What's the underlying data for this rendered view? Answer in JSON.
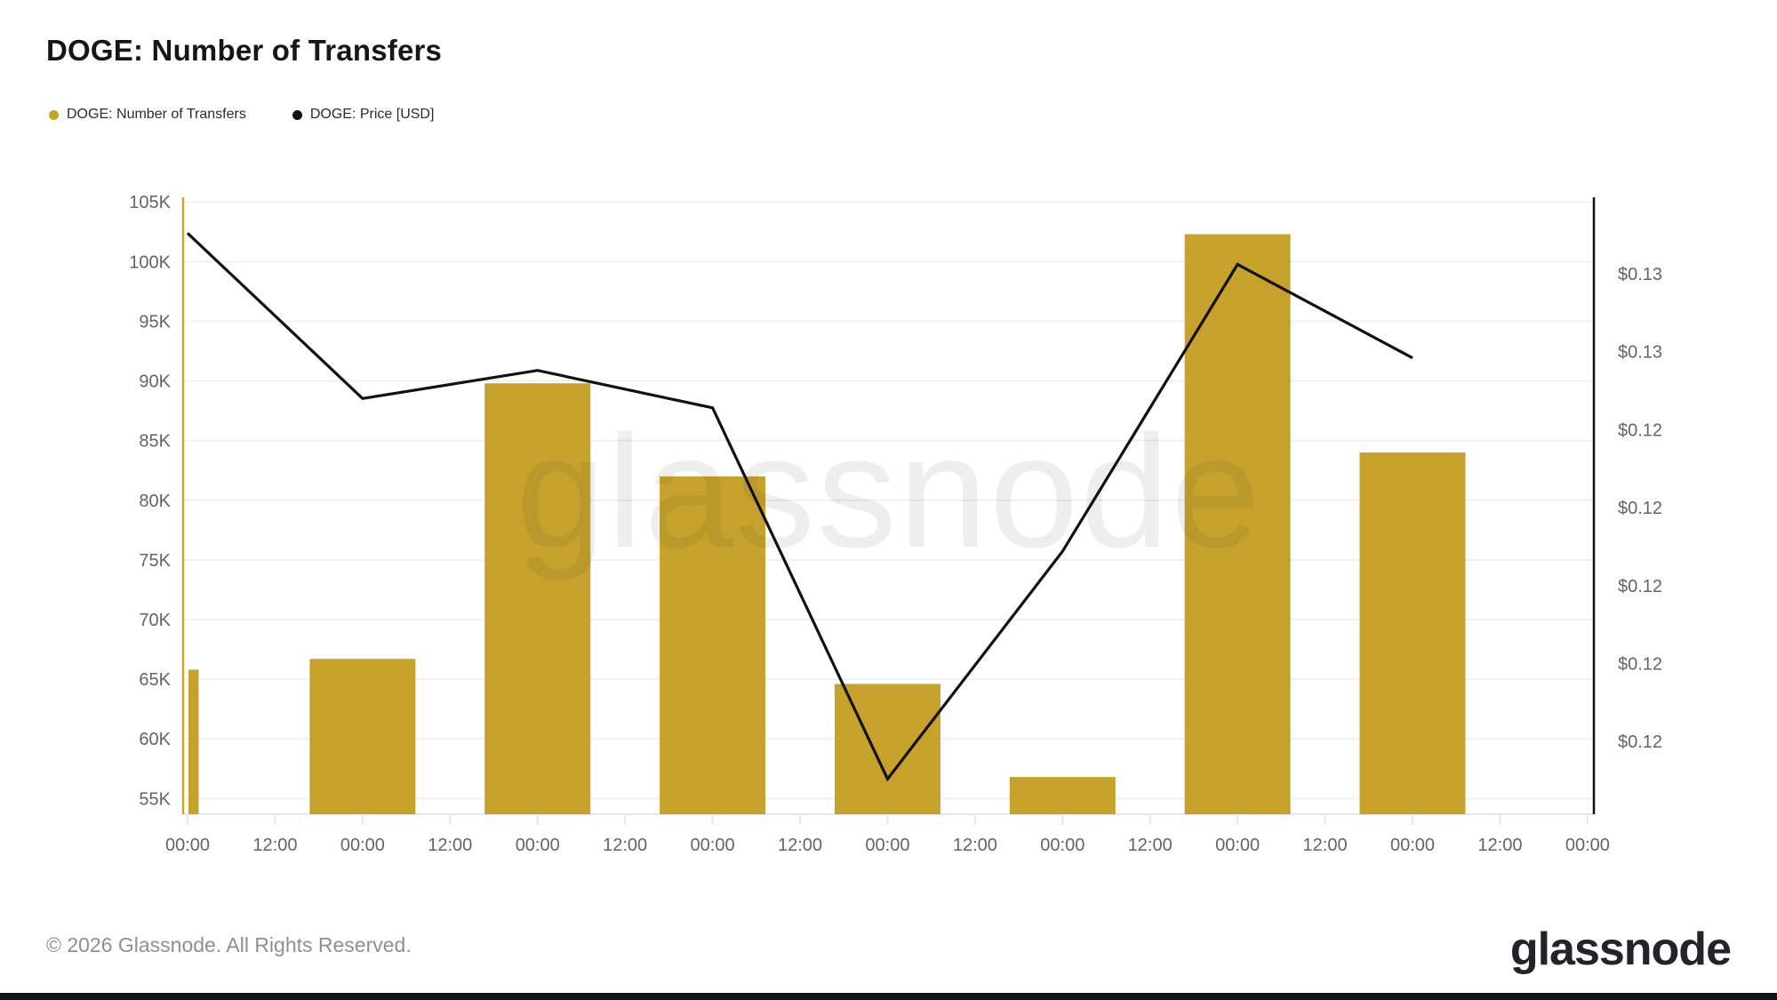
{
  "header": {
    "title": "DOGE: Number of Transfers"
  },
  "legend": [
    {
      "label": "DOGE: Number of Transfers",
      "color": "#C6A22D"
    },
    {
      "label": "DOGE: Price [USD]",
      "color": "#111111"
    }
  ],
  "watermark_text": "glassnode",
  "footer": {
    "copyright": "© 2026 Glassnode. All Rights Reserved.",
    "logo_text": "glassnode"
  },
  "colors": {
    "bar": "#C6A22D",
    "price_line": "#111111",
    "left_axis_line": "#C9A52B",
    "right_axis_line": "#111111",
    "grid_line": "#f0f0f4",
    "tick_mark": "#e6e6eb",
    "axis_label": "#646468",
    "watermark": "rgba(40,40,40,0.08)",
    "bottom_bar": "#13131d"
  },
  "chart_data": {
    "type": "bar",
    "title": "DOGE: Number of Transfers",
    "grid": "horizontal",
    "legend_position": "top-left",
    "x_tick_labels": [
      "00:00",
      "12:00",
      "00:00",
      "12:00",
      "00:00",
      "12:00",
      "00:00",
      "12:00",
      "00:00",
      "12:00",
      "00:00",
      "12:00",
      "00:00",
      "12:00",
      "00:00",
      "12:00",
      "00:00"
    ],
    "left_axis": {
      "name": "DOGE: Number of Transfers",
      "tick_labels": [
        "105K",
        "100K",
        "95K",
        "90K",
        "85K",
        "80K",
        "75K",
        "70K",
        "65K",
        "60K",
        "55K"
      ],
      "tick_values": [
        105000,
        100000,
        95000,
        90000,
        85000,
        80000,
        75000,
        70000,
        65000,
        60000,
        55000
      ],
      "ylim": [
        53680,
        105390
      ]
    },
    "right_axis": {
      "name": "DOGE: Price [USD]",
      "tick_labels": [
        "$0.13",
        "$0.13",
        "$0.12",
        "$0.12",
        "$0.12",
        "$0.12",
        "$0.12"
      ],
      "tick_values": [
        0.13,
        0.1275,
        0.125,
        0.1225,
        0.12,
        0.1175,
        0.115
      ],
      "ylim": [
        0.11267,
        0.13245
      ]
    },
    "series": [
      {
        "name": "DOGE: Number of Transfers",
        "type": "bar",
        "axis": "left",
        "color": "#C6A22D",
        "x_tick_index": [
          0,
          2,
          4,
          6,
          8,
          10,
          12,
          14
        ],
        "values": [
          65800,
          66700,
          89800,
          82000,
          64600,
          56800,
          102300,
          84000
        ],
        "first_bar_clipped_left": true
      },
      {
        "name": "DOGE: Price [USD]",
        "type": "line",
        "axis": "right",
        "color": "#111111",
        "x_tick_index": [
          0,
          2,
          4,
          6,
          8,
          10,
          12,
          14
        ],
        "values": [
          0.1313,
          0.126,
          0.1269,
          0.1257,
          0.1138,
          0.1211,
          0.1303,
          0.1273
        ]
      }
    ]
  }
}
